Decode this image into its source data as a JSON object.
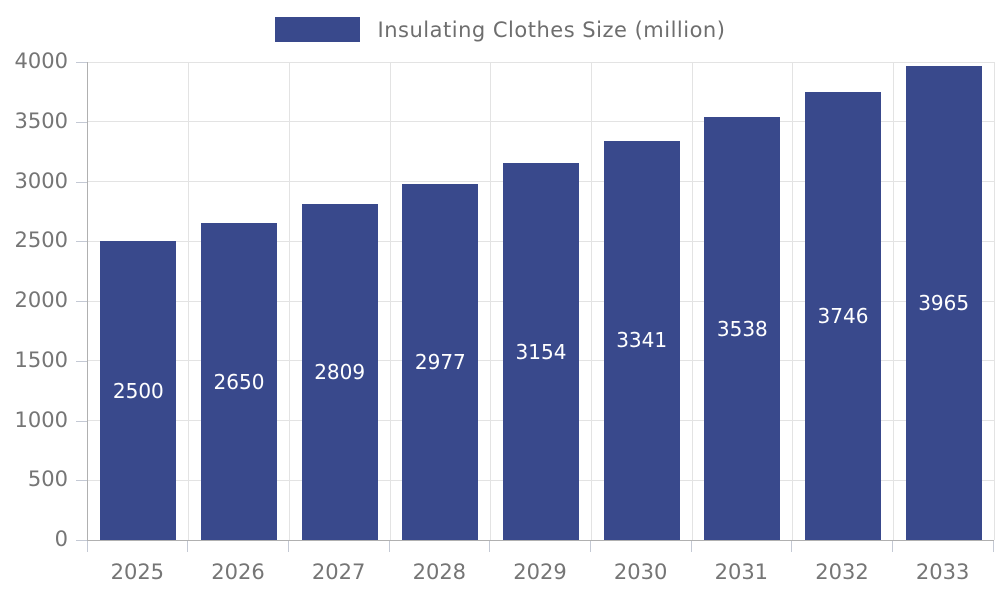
{
  "legend": {
    "label": "Insulating Clothes Size (million)"
  },
  "colors": {
    "bar": "#39498c",
    "bar_label": "#ffffff",
    "axis_text": "#757575",
    "legend_text": "#6e6e6e",
    "gridline": "#e3e3e3",
    "axis_line": "#b0b0b0"
  },
  "chart_data": {
    "type": "bar",
    "title": "",
    "xlabel": "",
    "ylabel": "",
    "series_name": "Insulating Clothes Size (million)",
    "categories": [
      "2025",
      "2026",
      "2027",
      "2028",
      "2029",
      "2030",
      "2031",
      "2032",
      "2033"
    ],
    "values": [
      2500,
      2650,
      2809,
      2977,
      3154,
      3341,
      3538,
      3746,
      3965
    ],
    "ylim": [
      0,
      4000
    ],
    "yticks": [
      0,
      500,
      1000,
      1500,
      2000,
      2500,
      3000,
      3500,
      4000
    ],
    "grid": true,
    "legend_position": "top-center",
    "value_labels": "inside-center"
  }
}
